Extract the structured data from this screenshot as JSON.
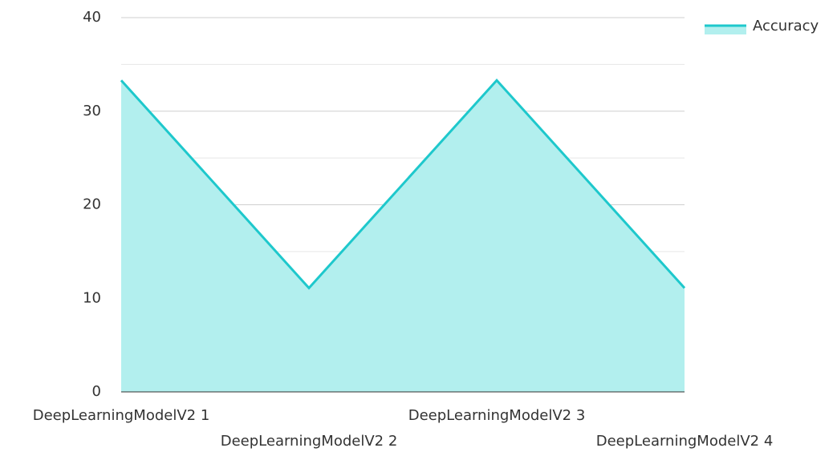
{
  "chart_data": {
    "type": "area",
    "categories": [
      "DeepLearningModelV2 1",
      "DeepLearningModelV2 2",
      "DeepLearningModelV2 3",
      "DeepLearningModelV2 4"
    ],
    "series": [
      {
        "name": "Accuracy",
        "color": "#1ec8cc",
        "fill": "#b2efee",
        "values": [
          33.3,
          11.1,
          33.3,
          11.1
        ]
      }
    ],
    "ylim": [
      0,
      40
    ],
    "yticks": [
      0,
      10,
      20,
      30,
      40
    ],
    "minor_yticks": [
      5,
      15,
      25,
      35
    ],
    "grid": true,
    "legend": "top-right"
  }
}
